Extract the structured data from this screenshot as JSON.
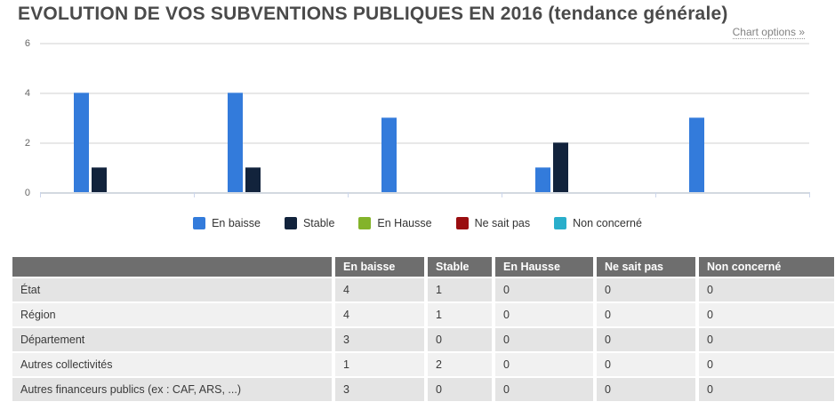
{
  "page": {
    "title": "EVOLUTION DE VOS SUBVENTIONS PUBLIQUES EN 2016 (tendance générale)",
    "chart_options_label": "Chart options »"
  },
  "colors": {
    "en_baisse": "#337bdb",
    "stable": "#12233c",
    "en_hausse": "#83b32a",
    "ne_sait_pas": "#9a0e10",
    "non_concerne": "#29aecb",
    "table_header_bg": "#6e6e6e",
    "row_odd_bg": "#e4e4e4",
    "row_even_bg": "#f1f1f1",
    "gridline": "#e8e8e8",
    "axis_line": "#ccd6eb"
  },
  "chart_data": {
    "type": "bar",
    "title": "EVOLUTION DE VOS SUBVENTIONS PUBLIQUES EN 2016 (tendance générale)",
    "categories": [
      "État",
      "Région",
      "Département",
      "Autres collectivités",
      "Autres financeurs publics (ex : CAF, ARS, ...)"
    ],
    "series": [
      {
        "name": "En baisse",
        "color": "#337bdb",
        "values": [
          4,
          4,
          3,
          1,
          3
        ]
      },
      {
        "name": "Stable",
        "color": "#12233c",
        "values": [
          1,
          1,
          0,
          2,
          0
        ]
      },
      {
        "name": "En Hausse",
        "color": "#83b32a",
        "values": [
          0,
          0,
          0,
          0,
          0
        ]
      },
      {
        "name": "Ne sait pas",
        "color": "#9a0e10",
        "values": [
          0,
          0,
          0,
          0,
          0
        ]
      },
      {
        "name": "Non concerné",
        "color": "#29aecb",
        "values": [
          0,
          0,
          0,
          0,
          0
        ]
      }
    ],
    "xlabel": "",
    "ylabel": "",
    "ylim": [
      0,
      6
    ],
    "yticks": [
      0,
      2,
      4,
      6
    ],
    "grid": true,
    "legend_position": "bottom-center"
  },
  "table": {
    "columns": [
      "",
      "En baisse",
      "Stable",
      "En Hausse",
      "Ne sait pas",
      "Non concerné"
    ],
    "rows": [
      {
        "label": "État",
        "values": [
          "4",
          "1",
          "0",
          "0",
          "0"
        ]
      },
      {
        "label": "Région",
        "values": [
          "4",
          "1",
          "0",
          "0",
          "0"
        ]
      },
      {
        "label": "Département",
        "values": [
          "3",
          "0",
          "0",
          "0",
          "0"
        ]
      },
      {
        "label": "Autres collectivités",
        "values": [
          "1",
          "2",
          "0",
          "0",
          "0"
        ]
      },
      {
        "label": "Autres financeurs publics (ex : CAF, ARS, ...)",
        "values": [
          "3",
          "0",
          "0",
          "0",
          "0"
        ]
      }
    ]
  }
}
